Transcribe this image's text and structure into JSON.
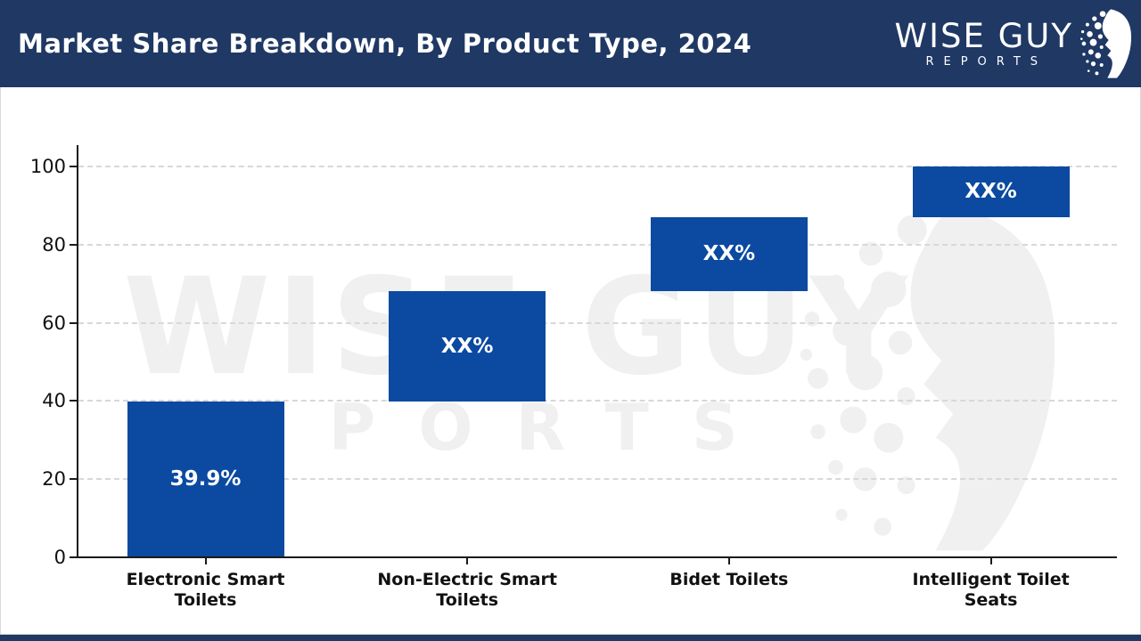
{
  "header": {
    "title": "Market Share Breakdown, By Product Type, 2024",
    "logo": {
      "wordmark": "WISE GUY",
      "subtext": "REPORTS"
    }
  },
  "watermark": {
    "line1": "WISE GUY",
    "line2": "REPORTS"
  },
  "chart_data": {
    "type": "bar",
    "subtype": "waterfall",
    "title": "Market Share Breakdown, By Product Type, 2024",
    "categories": [
      "Electronic Smart Toilets",
      "Non-Electric Smart Toilets",
      "Bidet Toilets",
      "Intelligent Toilet Seats"
    ],
    "bars": [
      {
        "category": "Electronic Smart Toilets",
        "category_lines": [
          "Electronic Smart",
          "Toilets"
        ],
        "label": "39.9%",
        "start": 0,
        "end": 39.9
      },
      {
        "category": "Non-Electric Smart Toilets",
        "category_lines": [
          "Non-Electric Smart",
          "Toilets"
        ],
        "label": "XX%",
        "start": 39.9,
        "end": 68.2
      },
      {
        "category": "Bidet Toilets",
        "category_lines": [
          "Bidet Toilets"
        ],
        "label": "XX%",
        "start": 68.2,
        "end": 87.1
      },
      {
        "category": "Intelligent Toilet Seats",
        "category_lines": [
          "Intelligent Toilet",
          "Seats"
        ],
        "label": "XX%",
        "start": 87.1,
        "end": 100
      }
    ],
    "yticks": [
      0,
      20,
      40,
      60,
      80,
      100
    ],
    "ylim": [
      0,
      100
    ],
    "grid": true,
    "legend": false,
    "bar_color": "#0B4AA0",
    "value_label_color": "#FFFFFF"
  },
  "colors": {
    "header_bg": "#1F3864",
    "footer_bg": "#1F3864",
    "bar": "#0B4AA0",
    "watermark": "#F0F0F0",
    "gridline": "#D8D8D8",
    "axis": "#1A1A1A",
    "page_bg": "#FFFFFF"
  }
}
